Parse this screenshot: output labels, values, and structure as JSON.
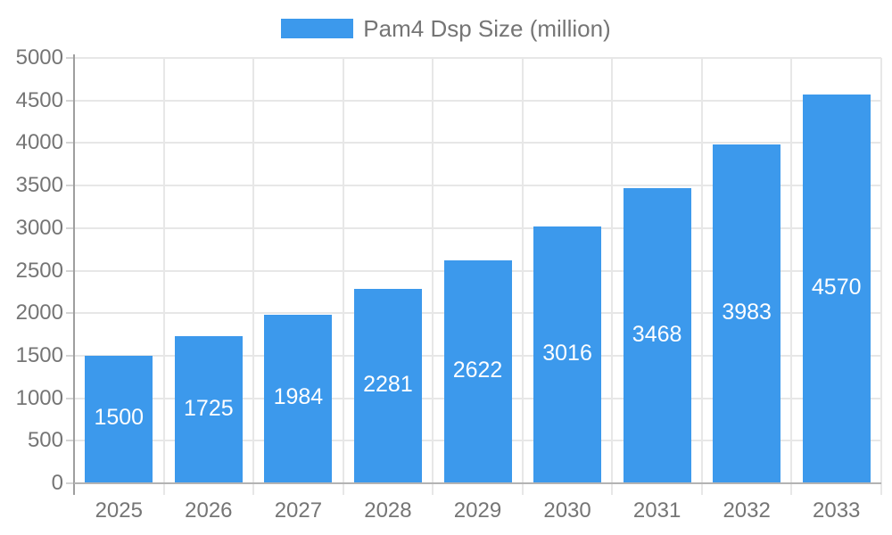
{
  "chart_data": {
    "type": "bar",
    "title": "Pam4 Dsp Size (million)",
    "categories": [
      "2025",
      "2026",
      "2027",
      "2028",
      "2029",
      "2030",
      "2031",
      "2032",
      "2033"
    ],
    "values": [
      1500,
      1725,
      1984,
      2281,
      2622,
      3016,
      3468,
      3983,
      4570
    ],
    "xlabel": "",
    "ylabel": "",
    "ylim": [
      0,
      5000
    ],
    "ytick_interval": 500,
    "ytick_labels": [
      "0",
      "500",
      "1000",
      "1500",
      "2000",
      "2500",
      "3000",
      "3500",
      "4000",
      "4500",
      "5000"
    ],
    "grid": true,
    "legend_position": "top-center",
    "value_labels_inside_bars": true,
    "colors": {
      "bar": "#3C99EC",
      "axis_text": "#757575",
      "bar_value_text": "#FFFFFF",
      "gridline": "#E7E7E7",
      "y_axis_line": "#9E9E9E",
      "x_baseline": "#B3B3B3",
      "y_tick": "#D4D4D4"
    }
  }
}
